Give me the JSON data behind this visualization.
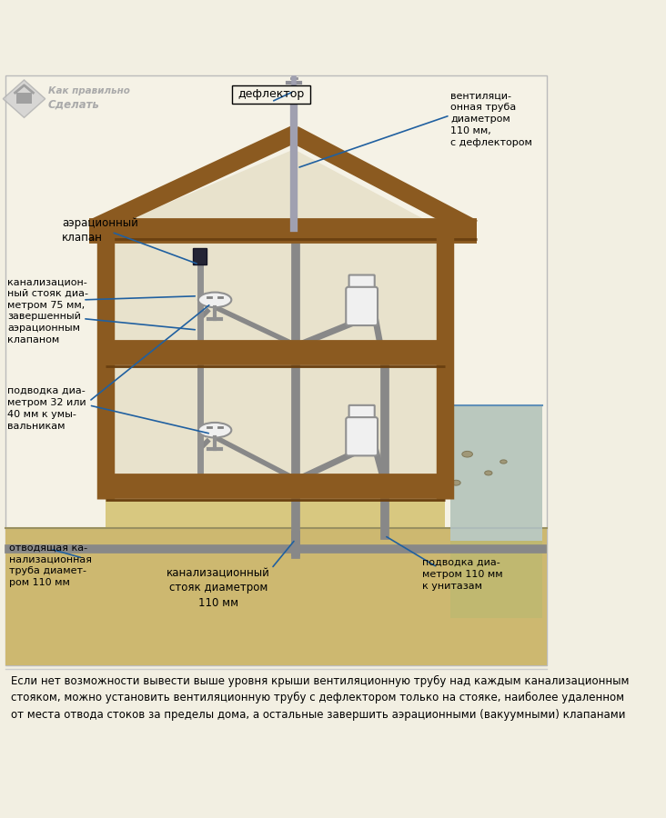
{
  "bg_color": "#f2efe2",
  "diagram_bg": "#f0ece0",
  "wood_color": "#8B5A20",
  "wall_color": "#e8e2cc",
  "pipe_color": "#909090",
  "label_line_color": "#2060a0",
  "ground_color": "#c8a850",
  "ground_dark": "#b89840",
  "water_color": "#a8c8e8",
  "footer_text": "Если нет возможности вывести выше уровня крыши вентиляционную трубу над каждым канализационным\nстояком, можно установить вентиляционную трубу с дефлектором только на стояке, наиболее удаленном\nот места отвода стоков за пределы дома, а остальные завершить аэрационными (вакуумными) клапанами",
  "label_deflector": "дефлектор",
  "label_vent_pipe": "вентиляци-\nонная труба\nдиаметром\n110 мм,\nс дефлектором",
  "label_aer_valve": "аэрационный\nклапан",
  "label_stack75": "канализацион-\nный стояк диа-\nметром 75 мм,\nзавершенный\nаэрационным\nклапаном",
  "label_supply3240": "подводка диа-\nметром 32 или\n40 мм к умы-\nвальникам",
  "label_drain": "отводящая ка-\nнализационная\nтруба диамет-\nром 110 мм",
  "label_stack110": "канализационный\nстояк диаметром\n110 мм",
  "label_supply110": "подводка диа-\nметром 110 мм\nк унитазам"
}
